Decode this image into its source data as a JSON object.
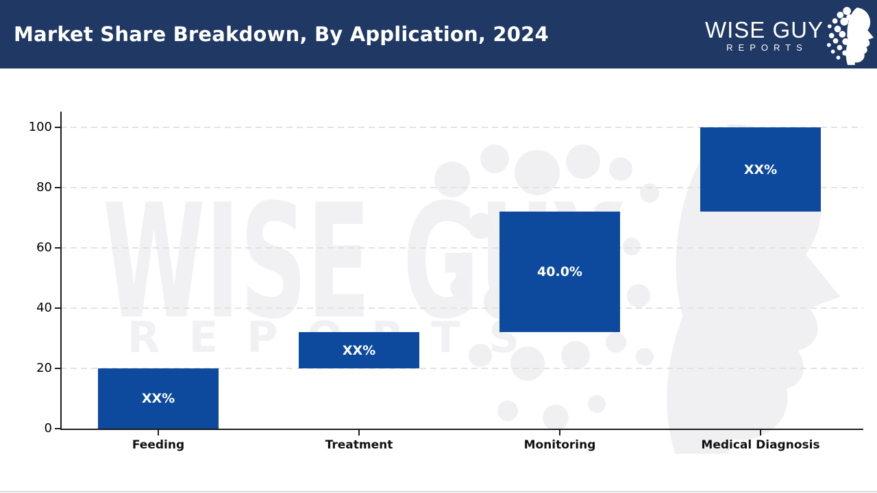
{
  "header": {
    "title": "Market Share Breakdown, By Application, 2024",
    "bg_color": "#1f3864",
    "logo": {
      "line1": "WISE GUY",
      "line2": "REPORTS"
    }
  },
  "chart_data": {
    "type": "bar",
    "subtype": "floating-waterfall",
    "title": "Market Share Breakdown, By Application, 2024",
    "categories": [
      "Feeding",
      "Treatment",
      "Monitoring",
      "Medical Diagnosis"
    ],
    "series": [
      {
        "name": "Market Share (%)",
        "segments": [
          {
            "category": "Feeding",
            "start": 0,
            "end": 20,
            "value_label": "XX%"
          },
          {
            "category": "Treatment",
            "start": 20,
            "end": 32,
            "value_label": "XX%"
          },
          {
            "category": "Monitoring",
            "start": 32,
            "end": 72,
            "value_label": "40.0%"
          },
          {
            "category": "Medical Diagnosis",
            "start": 72,
            "end": 100,
            "value_label": "XX%"
          }
        ]
      }
    ],
    "xlabel": "",
    "ylabel": "",
    "ylim": [
      0,
      105
    ],
    "yticks": [
      0,
      20,
      40,
      60,
      80,
      100
    ],
    "grid": "horizontal-dashed",
    "legend": "none",
    "bar_color": "#0d4a9e",
    "bar_label_color": "#ffffff",
    "watermark_text1": "WISE GUY",
    "watermark_text2": "REPORTS"
  }
}
